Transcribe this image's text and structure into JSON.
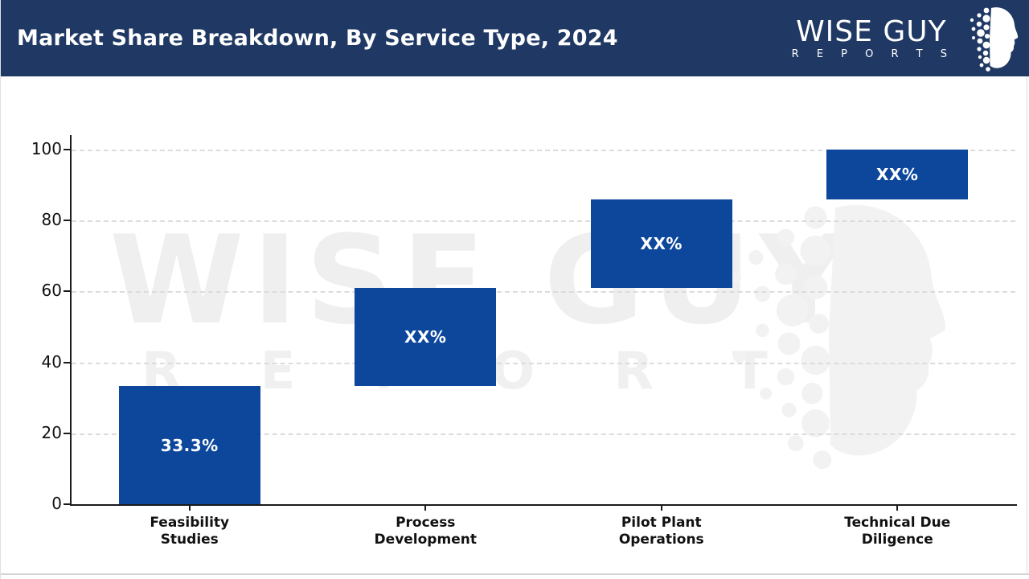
{
  "header": {
    "title": "Market Share Breakdown, By Service Type, 2024",
    "logo": {
      "name": "WISE GUY",
      "sub": "R E P O R T S"
    }
  },
  "watermark": {
    "line1": "WISE GUY",
    "line2": "R E P O R T S"
  },
  "colors": {
    "header_bg": "#1F3864",
    "bar": "#0C479C",
    "bar_label_text": "#FFFFFF",
    "grid": "#DCDCDC",
    "axis": "#1A1A1A",
    "watermark": "#EFEFEF"
  },
  "chart_data": {
    "type": "bar",
    "subtype": "waterfall",
    "title": "Market Share Breakdown, By Service Type, 2024",
    "categories": [
      "Feasibility Studies",
      "Process Development",
      "Pilot Plant Operations",
      "Technical Due Diligence"
    ],
    "category_lines": [
      [
        "Feasibility",
        "Studies"
      ],
      [
        "Process",
        "Development"
      ],
      [
        "Pilot Plant",
        "Operations"
      ],
      [
        "Technical Due",
        "Diligence"
      ]
    ],
    "segments": [
      {
        "category": "Feasibility Studies",
        "start": 0,
        "end": 33.3,
        "label": "33.3%"
      },
      {
        "category": "Process Development",
        "start": 33.3,
        "end": 61.1,
        "label": "XX%"
      },
      {
        "category": "Pilot Plant Operations",
        "start": 61.1,
        "end": 86.0,
        "label": "XX%"
      },
      {
        "category": "Technical Due Diligence",
        "start": 86.0,
        "end": 100.0,
        "label": "XX%"
      }
    ],
    "xlabel": "",
    "ylabel": "",
    "ylim": [
      0,
      104
    ],
    "yticks": [
      0,
      20,
      40,
      60,
      80,
      100
    ],
    "grid": "horizontal-dashed",
    "legend": "none"
  }
}
